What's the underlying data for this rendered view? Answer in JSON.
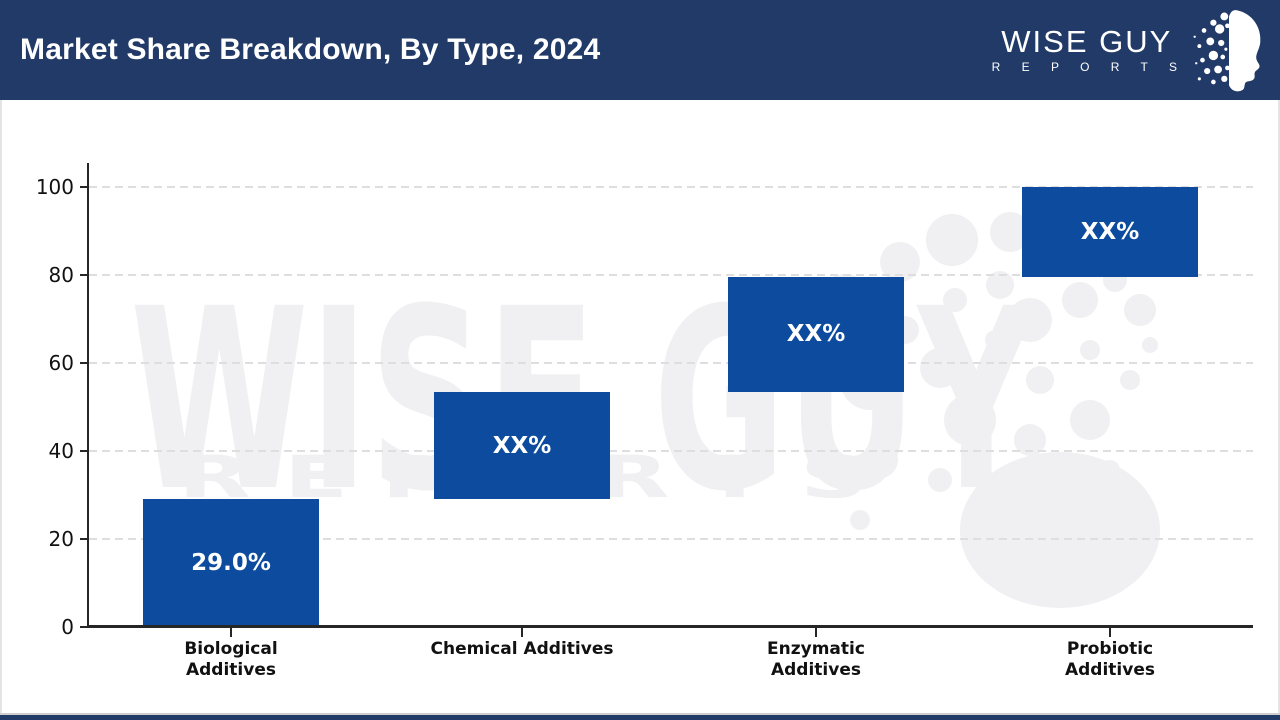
{
  "header": {
    "title": "Market Share Breakdown, By Type, 2024",
    "logo": {
      "line1": "WISE GUY",
      "line2": "R E P O R T S"
    }
  },
  "watermark": {
    "line1": "WISE GUY",
    "line2": "R E P O R T S"
  },
  "chart_data": {
    "type": "bar",
    "subtype": "waterfall",
    "title": "Market Share Breakdown, By Type, 2024",
    "xlabel": "",
    "ylabel": "",
    "categories": [
      [
        "Biological",
        "Additives"
      ],
      [
        "Chemical Additives"
      ],
      [
        "Enzymatic",
        "Additives"
      ],
      [
        "Probiotic",
        "Additives"
      ]
    ],
    "segments": [
      {
        "category": "Biological Additives",
        "start": 0,
        "end": 29.0,
        "label": "29.0%"
      },
      {
        "category": "Chemical Additives",
        "start": 29.0,
        "end": 53.4,
        "label": "XX%"
      },
      {
        "category": "Enzymatic Additives",
        "start": 53.4,
        "end": 79.6,
        "label": "XX%"
      },
      {
        "category": "Probiotic Additives",
        "start": 79.6,
        "end": 100.0,
        "label": "XX%"
      }
    ],
    "increments": [
      29.0,
      24.4,
      26.2,
      20.4
    ],
    "yticks": [
      0,
      20,
      40,
      60,
      80,
      100
    ],
    "ylim": [
      0,
      105.5
    ],
    "grid": "horizontal-dashed",
    "legend": "none"
  },
  "colors": {
    "header_bg": "#213a67",
    "bar": "#0c4b9e",
    "grid": "#dedede",
    "axis": "#262626",
    "watermark": "#f0f0f2",
    "bar_label": "#ffffff",
    "title_text": "#ffffff"
  }
}
